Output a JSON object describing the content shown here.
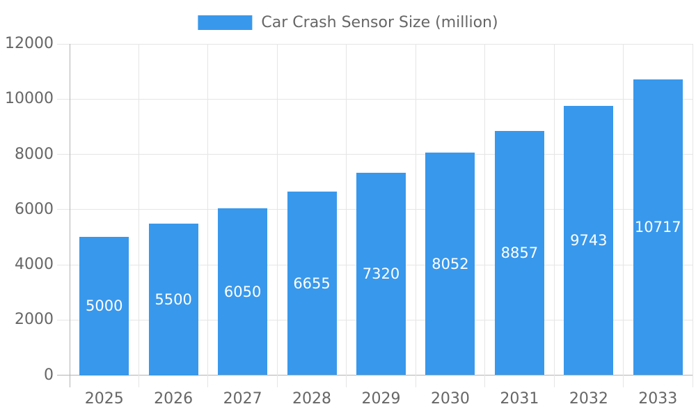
{
  "legend": {
    "label": "Car Crash Sensor Size (million)"
  },
  "chart_data": {
    "type": "bar",
    "title": "Car Crash Sensor Size (million)",
    "categories": [
      "2025",
      "2026",
      "2027",
      "2028",
      "2029",
      "2030",
      "2031",
      "2032",
      "2033"
    ],
    "values": [
      5000,
      5500,
      6050,
      6655,
      7320,
      8052,
      8857,
      9743,
      10717
    ],
    "xlabel": "",
    "ylabel": "",
    "ylim": [
      0,
      12000
    ],
    "yticks": [
      0,
      2000,
      4000,
      6000,
      8000,
      10000,
      12000
    ],
    "grid": true,
    "legend_position": "top",
    "colors": {
      "bar": "#3898EC",
      "bar_label": "#FFFFFF",
      "grid_line": "#E5E5E5",
      "axis_line": "#B3B3B3",
      "tick_text": "#666666",
      "legend_text": "#666666",
      "background": "#FFFFFF"
    }
  }
}
